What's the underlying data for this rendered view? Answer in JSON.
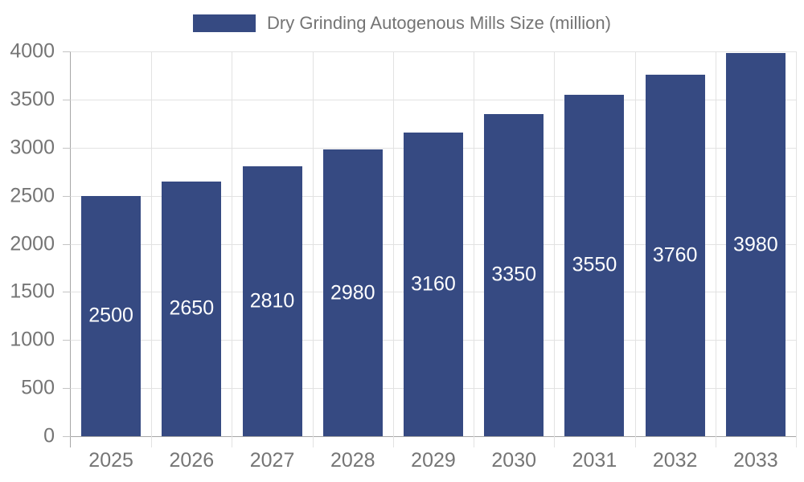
{
  "chart_data": {
    "type": "bar",
    "title": "",
    "series_name": "Dry Grinding Autogenous Mills Size (million)",
    "categories": [
      "2025",
      "2026",
      "2027",
      "2028",
      "2029",
      "2030",
      "2031",
      "2032",
      "2033"
    ],
    "values": [
      2500,
      2650,
      2810,
      2980,
      3160,
      3350,
      3550,
      3760,
      3980
    ],
    "xlabel": "",
    "ylabel": "",
    "ylim": [
      0,
      4000
    ],
    "yticks": [
      0,
      500,
      1000,
      1500,
      2000,
      2500,
      3000,
      3500,
      4000
    ],
    "grid": true,
    "legend_position": "top",
    "colors": {
      "bar": "#364a82",
      "bar_value_label": "#ffffff",
      "axis_tick_label": "#757575",
      "legend_text": "#747474",
      "gridline": "#e2e2e2",
      "axis_line": "#a6a6a6"
    }
  }
}
